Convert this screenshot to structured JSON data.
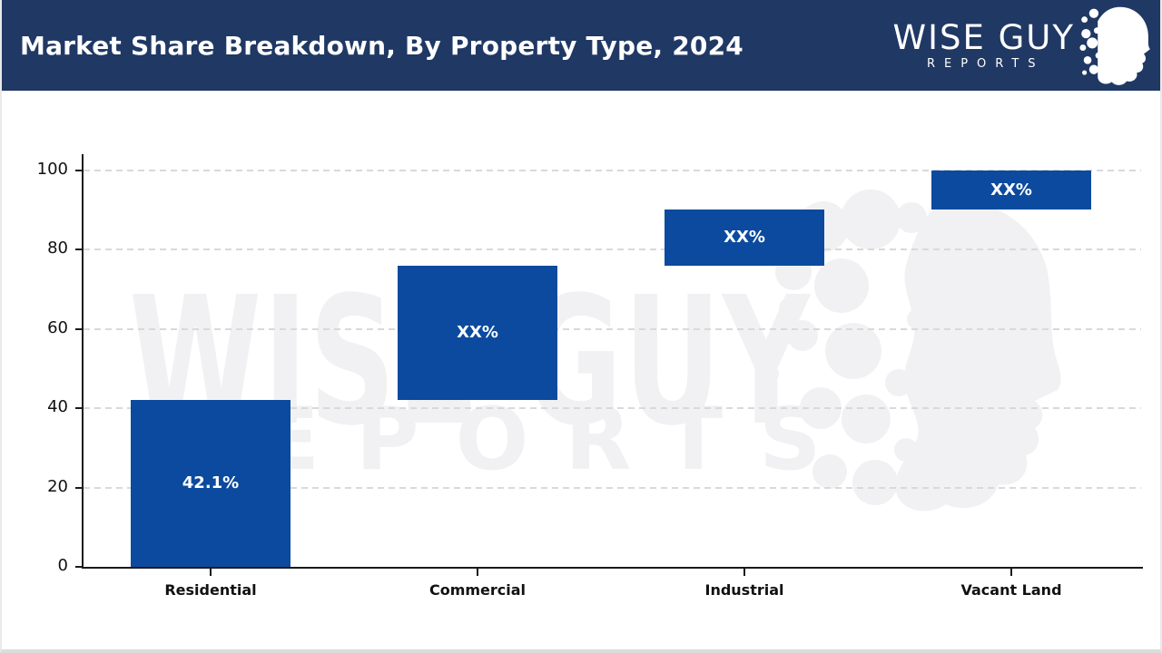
{
  "header": {
    "title": "Market Share Breakdown, By Property Type, 2024",
    "logo_line1": "WISE GUY",
    "logo_line2": "REPORTS"
  },
  "watermark": {
    "line1": "WISE GUY",
    "line2": "REPORTS"
  },
  "colors": {
    "header_bg": "#203864",
    "bar": "#0b4a9e",
    "bar_label": "#ffffff",
    "gridline": "#d9d9d9",
    "axis": "#1a1a1a",
    "watermark": "#f1f1f3"
  },
  "chart_data": {
    "type": "bar",
    "subtype": "waterfall",
    "title": "Market Share Breakdown, By Property Type, 2024",
    "xlabel": "",
    "ylabel": "",
    "ylim": [
      0,
      104
    ],
    "yticks": [
      0,
      20,
      40,
      60,
      80,
      100
    ],
    "grid": "horizontal-dashed",
    "legend": "none",
    "categories": [
      "Residential",
      "Commercial",
      "Industrial",
      "Vacant Land"
    ],
    "segments": [
      {
        "category": "Residential",
        "start": 0,
        "end": 42.1,
        "label": "42.1%"
      },
      {
        "category": "Commercial",
        "start": 42.1,
        "end": 76,
        "label": "XX%"
      },
      {
        "category": "Industrial",
        "start": 76,
        "end": 90,
        "label": "XX%"
      },
      {
        "category": "Vacant Land",
        "start": 90,
        "end": 100,
        "label": "XX%"
      }
    ]
  }
}
